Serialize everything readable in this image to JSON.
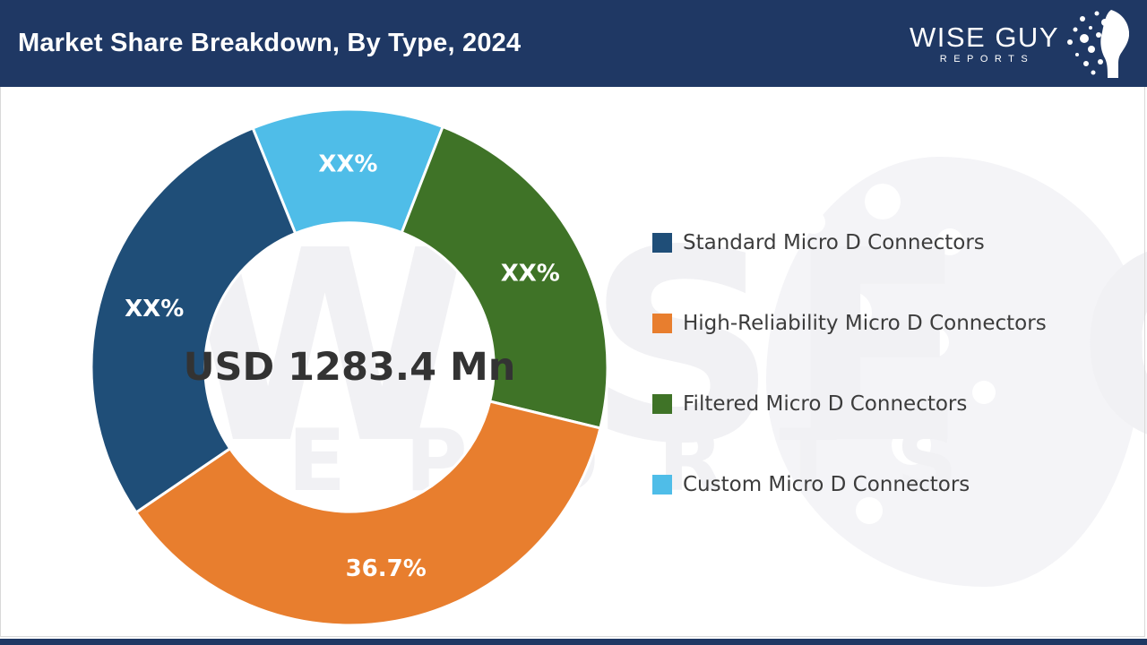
{
  "header": {
    "title": "Market Share Breakdown, By Type, 2024",
    "logo": {
      "name": "WISE GUY",
      "sub": "REPORTS"
    }
  },
  "watermark": {
    "line1": "WISE GUY",
    "line2": "REPORTS"
  },
  "chart_data": {
    "type": "pie",
    "subtype": "donut",
    "title": "Market Share Breakdown, By Type, 2024",
    "center_label": "USD 1283.4 Mn",
    "units": "USD Mn",
    "total_value_mn": 1283.4,
    "donut_hole_ratio": 0.56,
    "start_angle_deg": -22,
    "legend_position": "right",
    "series": [
      {
        "id": "standard",
        "name": "Standard Micro D Connectors",
        "display_label": "XX%",
        "share_pct": 28.4,
        "color": "#1F4E78"
      },
      {
        "id": "high-reliability",
        "name": "High-Reliability Micro D Connectors",
        "display_label": "36.7%",
        "share_pct": 36.7,
        "color": "#E87E2E"
      },
      {
        "id": "filtered",
        "name": "Filtered Micro D Connectors",
        "display_label": "XX%",
        "share_pct": 22.9,
        "color": "#3F7327"
      },
      {
        "id": "custom",
        "name": "Custom Micro D Connectors",
        "display_label": "XX%",
        "share_pct": 12.0,
        "color": "#4FBDE8"
      }
    ],
    "draw_order_clockwise_from_top": [
      "custom",
      "filtered",
      "high-reliability",
      "standard"
    ]
  }
}
